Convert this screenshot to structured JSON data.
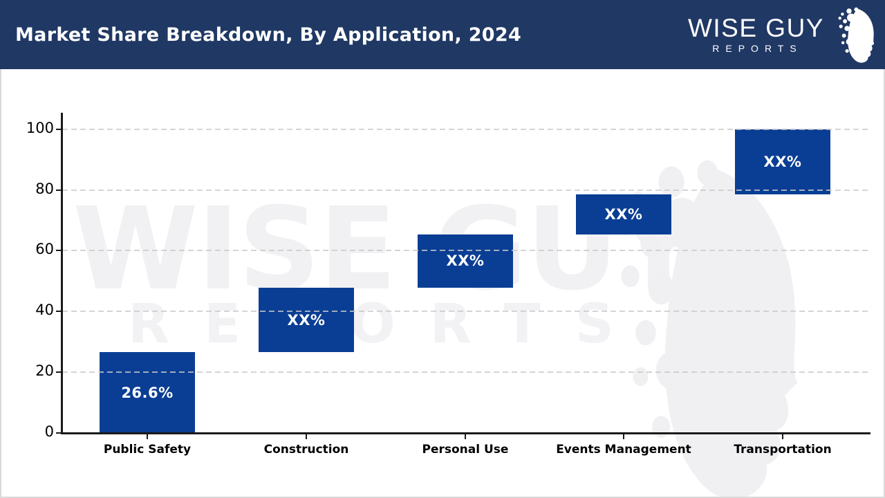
{
  "header": {
    "title": "Market Share Breakdown, By Application, 2024",
    "logo": {
      "brand": "WISE GUY",
      "sub": "REPORTS"
    }
  },
  "watermark": {
    "brand": "WISE GUY",
    "sub": "REPORTS"
  },
  "chart_data": {
    "type": "bar",
    "subtype": "floating-waterfall",
    "title": "Market Share Breakdown, By Application, 2024",
    "categories": [
      "Public Safety",
      "Construction",
      "Personal Use",
      "Events Management",
      "Transportation"
    ],
    "series": [
      {
        "name": "Market share (%)",
        "segments": [
          {
            "start": 0,
            "end": 26.6,
            "label": "26.6%"
          },
          {
            "start": 26.6,
            "end": 47.8,
            "label": "XX%"
          },
          {
            "start": 47.8,
            "end": 65.4,
            "label": "XX%"
          },
          {
            "start": 65.4,
            "end": 78.6,
            "label": "XX%"
          },
          {
            "start": 78.6,
            "end": 100,
            "label": "XX%"
          }
        ]
      }
    ],
    "xlabel": "",
    "ylabel": "",
    "ylim": [
      0,
      105
    ],
    "yticks": [
      0,
      20,
      40,
      60,
      80,
      100
    ],
    "grid": "horizontal-dashed",
    "legend": "none"
  },
  "colors": {
    "header_bg": "#203864",
    "bar": "#0a3e94",
    "grid": "#d4d4d4",
    "axis": "#1a1a1a",
    "watermark": "#f1f1f4",
    "title_text": "#ffffff"
  }
}
